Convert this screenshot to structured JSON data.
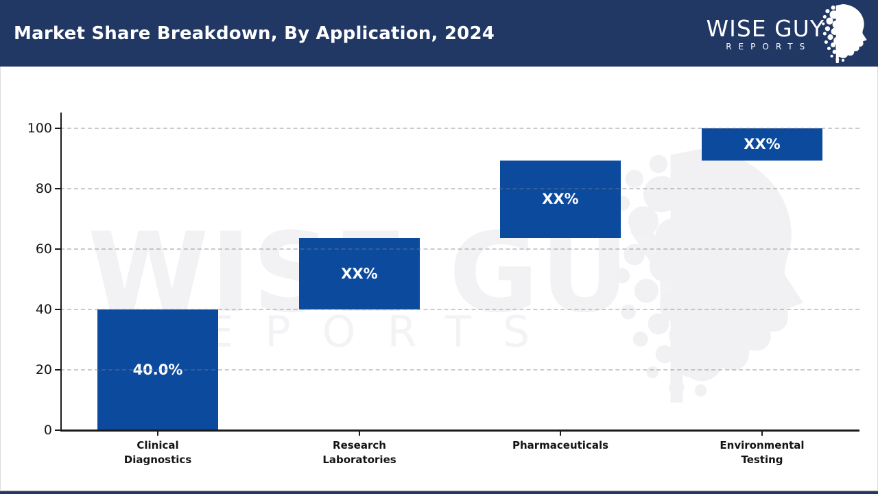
{
  "header": {
    "title": "Market Share Breakdown, By Application, 2024",
    "logo": {
      "line1": "WISE GUY",
      "line2": "REPORTS"
    }
  },
  "watermark": {
    "line1": "WISE GUY",
    "line2": "REPORTS"
  },
  "chart_data": {
    "type": "bar",
    "variant": "waterfall",
    "title": "Market Share Breakdown, By Application, 2024",
    "categories": [
      "Clinical Diagnostics",
      "Research Laboratories",
      "Pharmaceuticals",
      "Environmental Testing"
    ],
    "category_label_lines": [
      [
        "Clinical",
        "Diagnostics"
      ],
      [
        "Research",
        "Laboratories"
      ],
      [
        "Pharmaceuticals"
      ],
      [
        "Environmental",
        "Testing"
      ]
    ],
    "segments": [
      {
        "category": "Clinical Diagnostics",
        "start": 0,
        "end": 40,
        "label": "40.0%"
      },
      {
        "category": "Research Laboratories",
        "start": 40,
        "end": 63.6,
        "label": "XX%"
      },
      {
        "category": "Pharmaceuticals",
        "start": 63.6,
        "end": 89.4,
        "label": "XX%"
      },
      {
        "category": "Environmental Testing",
        "start": 89.4,
        "end": 100,
        "label": "XX%"
      }
    ],
    "ylim": [
      0,
      100
    ],
    "yticks": [
      0,
      20,
      40,
      60,
      80,
      100
    ],
    "xlabel": "",
    "ylabel": "",
    "grid": {
      "show": true,
      "style": "dashed",
      "over_bars": true
    },
    "legend": {
      "show": false
    },
    "colors": {
      "bar": "#0c4a9e",
      "header_bg": "#213764",
      "axis": "#1a1a1a",
      "grid": "#d9d9de"
    }
  }
}
